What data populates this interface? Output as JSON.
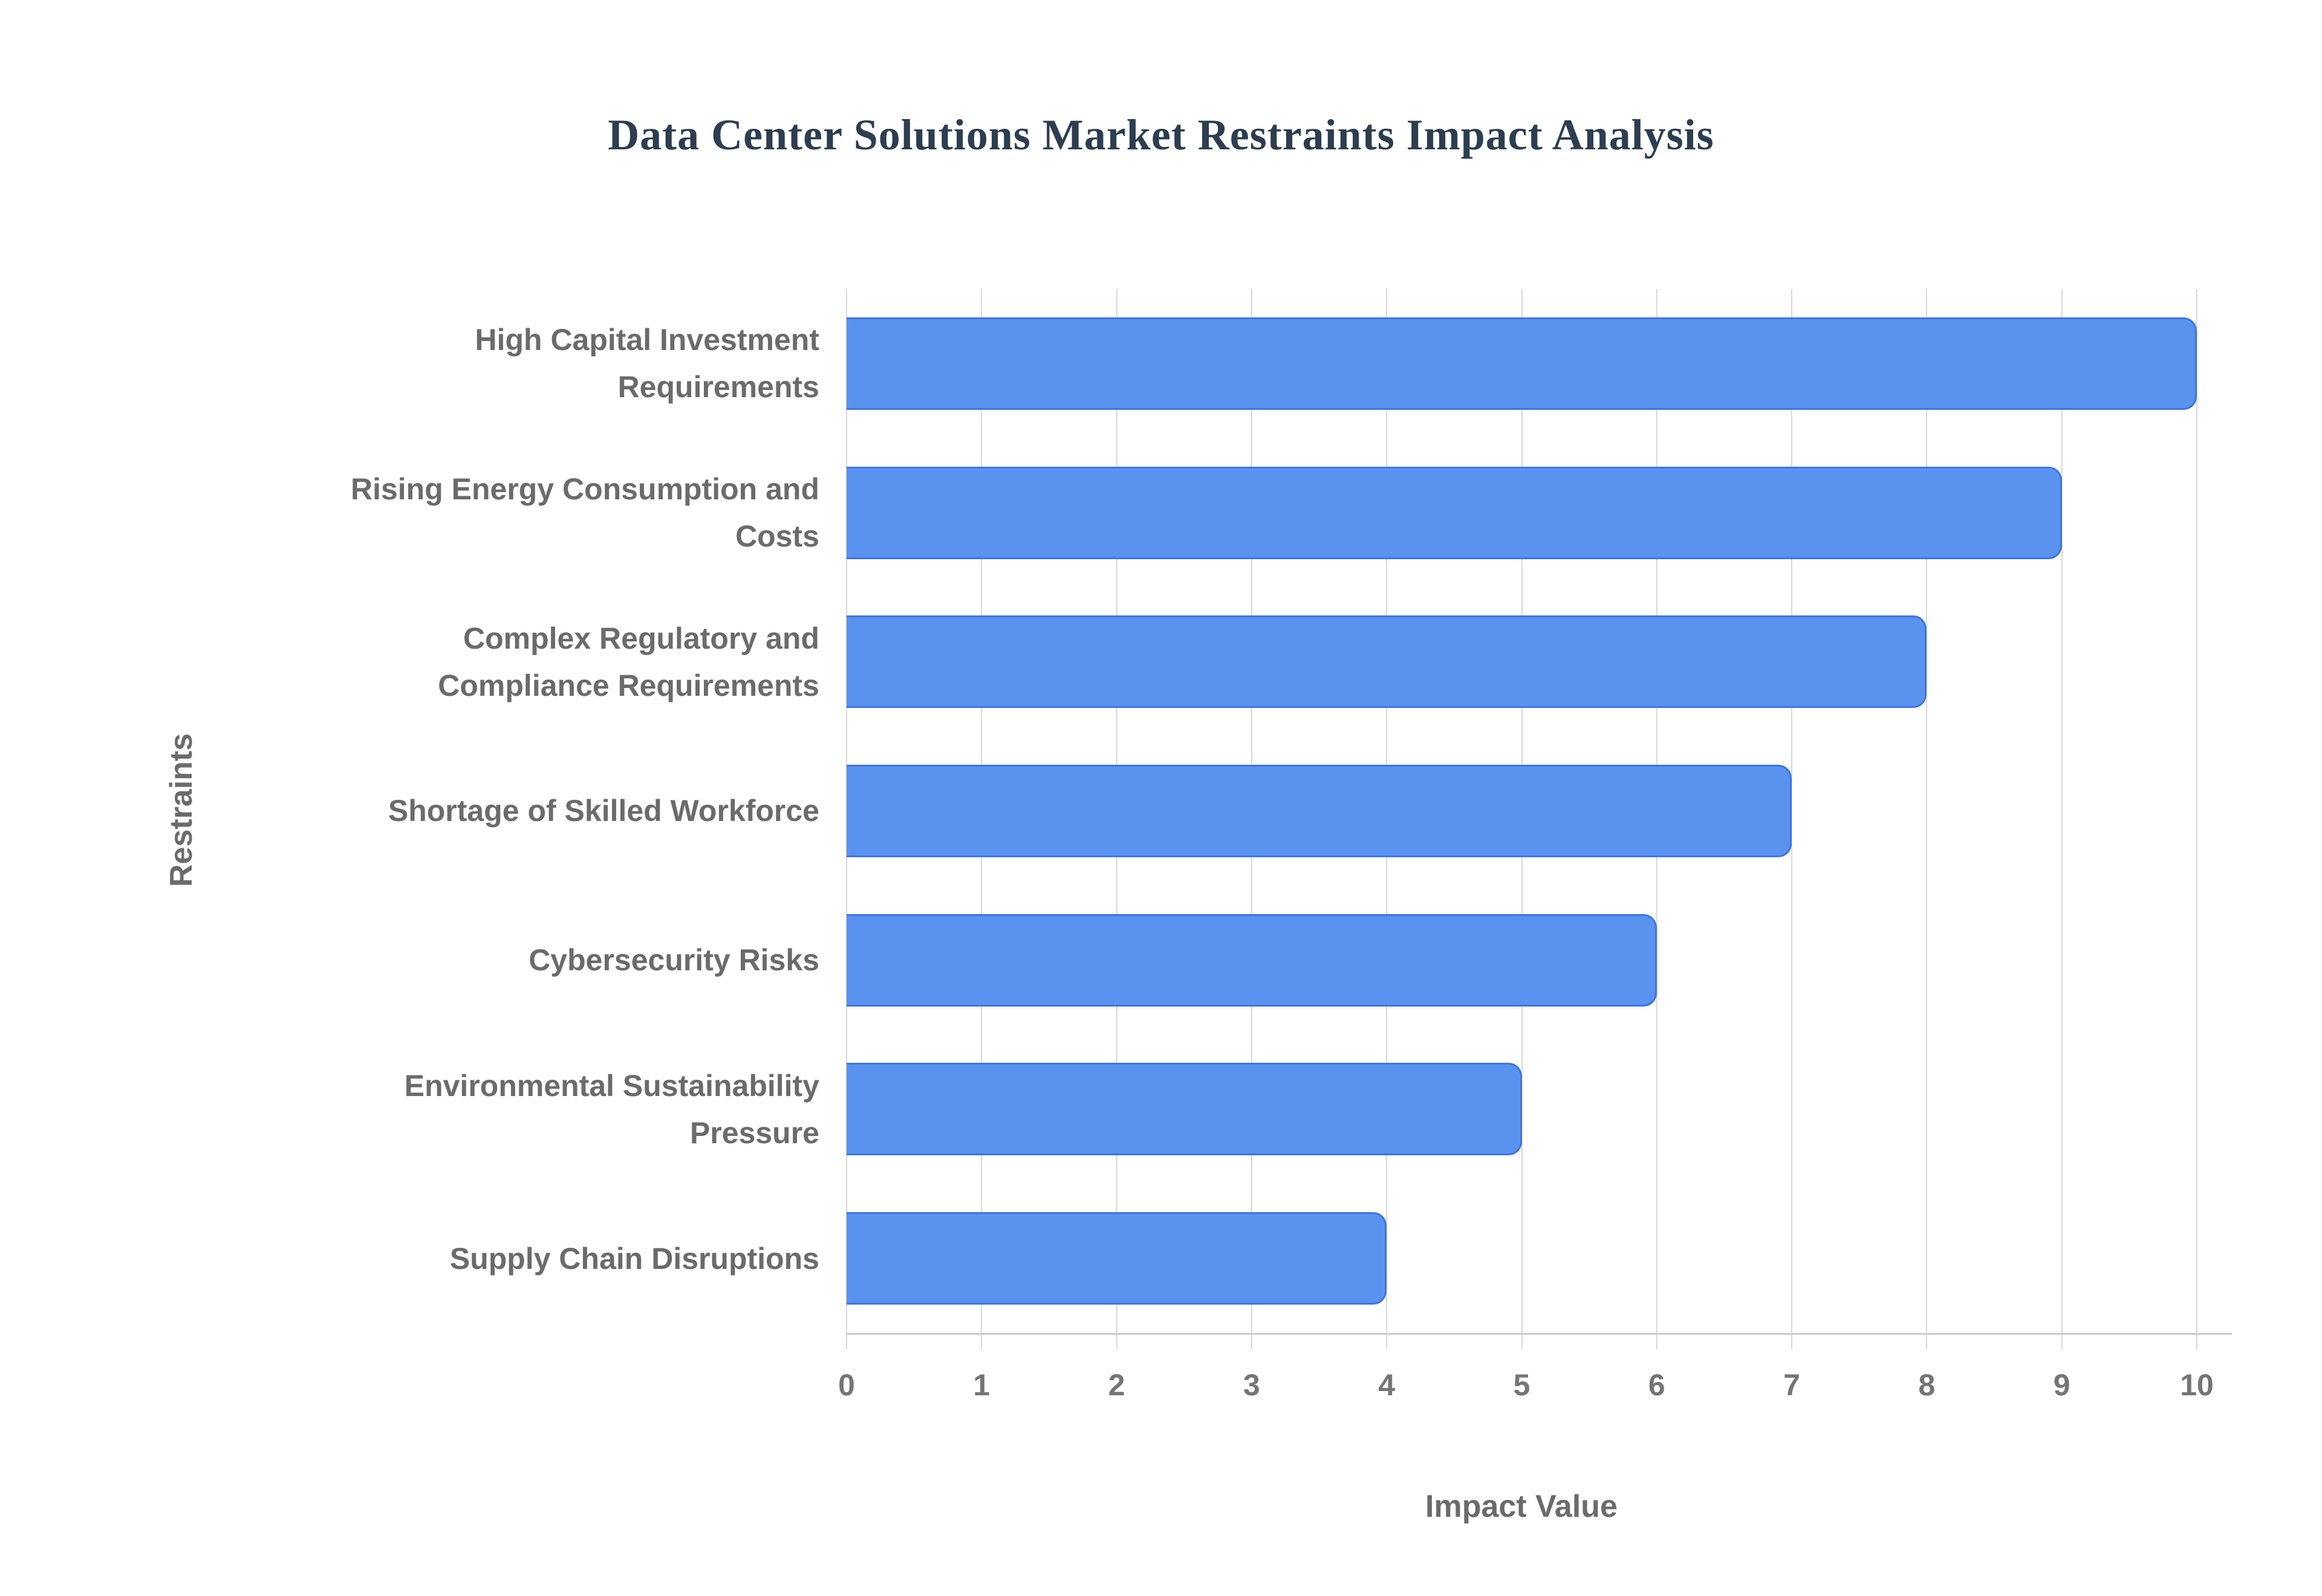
{
  "chart_data": {
    "type": "bar",
    "orientation": "horizontal",
    "title": "Data Center Solutions Market Restraints Impact Analysis",
    "xlabel": "Impact Value",
    "ylabel": "Restraints",
    "categories": [
      "High Capital Investment Requirements",
      "Rising Energy Consumption and Costs",
      "Complex Regulatory and Compliance Requirements",
      "Shortage of Skilled Workforce",
      "Cybersecurity Risks",
      "Environmental Sustainability Pressure",
      "Supply Chain Disruptions"
    ],
    "values": [
      10,
      9,
      8,
      7,
      6,
      5,
      4
    ],
    "xlim": [
      0,
      10
    ],
    "x_ticks": [
      "0",
      "1",
      "2",
      "3",
      "4",
      "5",
      "6",
      "7",
      "8",
      "9",
      "10"
    ],
    "grid": "vertical-gridlines-on",
    "legend": "none",
    "colors": {
      "bar_fill": "#5a92f0",
      "bar_border": "#3d75e6",
      "gridline": "#d9d9d9",
      "axis_line": "#cccccc",
      "title_color": "#2c3e50",
      "label_color": "#6b6b6b",
      "tick_color": "#757575",
      "background": "#ffffff"
    }
  }
}
